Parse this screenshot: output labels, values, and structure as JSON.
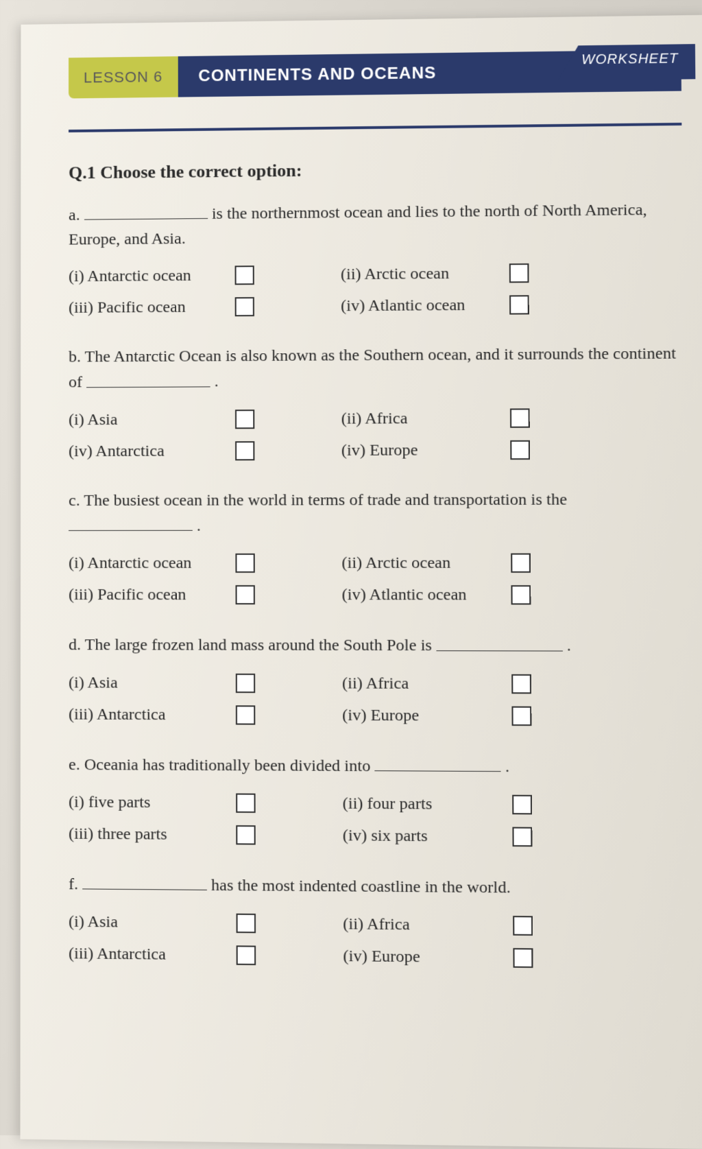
{
  "header": {
    "lesson": "LESSON 6",
    "title": "CONTINENTS AND OCEANS",
    "worksheet": "WORKSHEET"
  },
  "question_heading": "Q.1 Choose the correct option:",
  "subs": {
    "a": {
      "prefix": "a.",
      "text_after": " is the northernmost ocean and lies to the north of North America, Europe, and Asia.",
      "options": [
        {
          "num": "(i)",
          "label": "Antarctic ocean"
        },
        {
          "num": "(ii)",
          "label": "Arctic ocean"
        },
        {
          "num": "(iii)",
          "label": "Pacific ocean"
        },
        {
          "num": "(iv)",
          "label": "Atlantic ocean"
        }
      ]
    },
    "b": {
      "text_before": "b. The Antarctic Ocean is also known as the Southern ocean, and it surrounds the continent of ",
      "text_after": ".",
      "options": [
        {
          "num": "(i)",
          "label": "Asia"
        },
        {
          "num": "(ii)",
          "label": "Africa"
        },
        {
          "num": "(iv)",
          "label": "Antarctica"
        },
        {
          "num": "(iv)",
          "label": "Europe"
        }
      ]
    },
    "c": {
      "text_before": "c. The busiest ocean in the world in terms of trade and transportation is the ",
      "text_after": ".",
      "options": [
        {
          "num": "(i)",
          "label": "Antarctic ocean"
        },
        {
          "num": "(ii)",
          "label": "Arctic ocean"
        },
        {
          "num": "(iii)",
          "label": "Pacific ocean"
        },
        {
          "num": "(iv)",
          "label": "Atlantic ocean"
        }
      ]
    },
    "d": {
      "text_before": "d. The large frozen land mass around the South Pole is ",
      "text_after": ".",
      "options": [
        {
          "num": "(i)",
          "label": "Asia"
        },
        {
          "num": "(ii)",
          "label": "Africa"
        },
        {
          "num": "(iii)",
          "label": "Antarctica"
        },
        {
          "num": "(iv)",
          "label": "Europe"
        }
      ]
    },
    "e": {
      "text_before": "e. Oceania has traditionally been divided into ",
      "text_after": ".",
      "options": [
        {
          "num": "(i)",
          "label": "five parts"
        },
        {
          "num": "(ii)",
          "label": "four parts"
        },
        {
          "num": "(iii)",
          "label": "three parts"
        },
        {
          "num": "(iv)",
          "label": "six parts"
        }
      ]
    },
    "f": {
      "prefix": "f.",
      "text_after": " has the most indented coastline in the world.",
      "options": [
        {
          "num": "(i)",
          "label": "Asia"
        },
        {
          "num": "(ii)",
          "label": "Africa"
        },
        {
          "num": "(iii)",
          "label": "Antarctica"
        },
        {
          "num": "(iv)",
          "label": "Europe"
        }
      ]
    }
  }
}
